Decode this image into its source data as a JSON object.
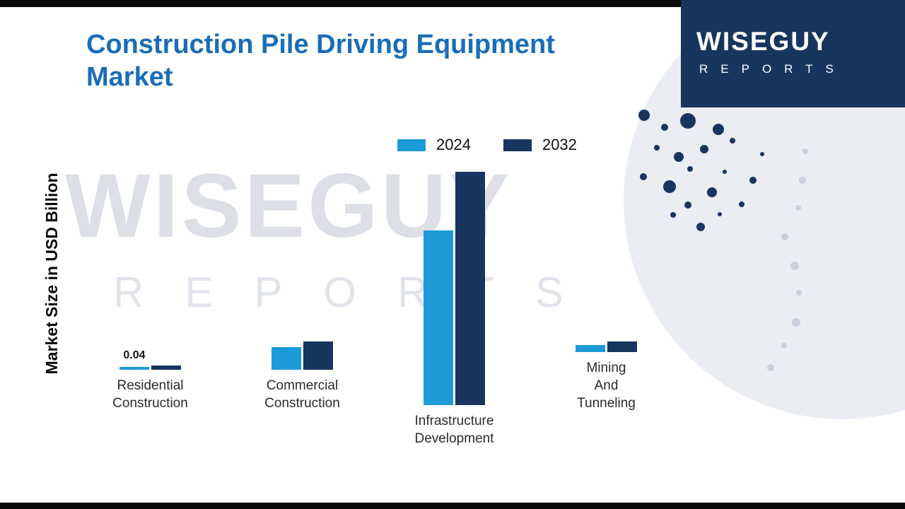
{
  "header": {
    "title": "Construction Pile Driving Equipment Market"
  },
  "logo": {
    "line1": "WISEGUY",
    "line2": "REPORTS"
  },
  "watermark": {
    "line1": "WISEGUY",
    "line2": "REPORTS"
  },
  "colors": {
    "title_blue": "#1a6db8",
    "bar_2024": "#1d9bd8",
    "bar_2032": "#17355f",
    "logo_background": "#17355f",
    "watermark_gray": "#dcdfe6"
  },
  "chart_data": {
    "type": "bar",
    "title": "Construction Pile Driving Equipment Market",
    "xlabel": "",
    "ylabel": "Market Size in USD Billion",
    "categories": [
      "Residential\nConstruction",
      "Commercial\nConstruction",
      "Infrastructure\nDevelopment",
      "Mining\nAnd\nTunneling"
    ],
    "series": [
      {
        "name": "2024",
        "color": "#1d9bd8",
        "values": [
          0.04,
          0.32,
          2.47,
          0.1
        ]
      },
      {
        "name": "2032",
        "color": "#17355f",
        "values": [
          0.06,
          0.4,
          3.3,
          0.15
        ]
      }
    ],
    "value_labels": [
      {
        "category": 0,
        "series": 0,
        "label": "0.04"
      }
    ],
    "ylim": [
      0,
      3.4
    ],
    "grid": false,
    "legend_position": "top"
  }
}
